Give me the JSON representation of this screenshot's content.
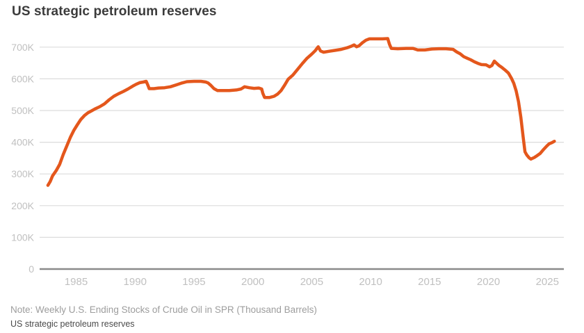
{
  "header": {
    "title": "US strategic petroleum reserves"
  },
  "footer": {
    "note": "Note: Weekly U.S. Ending Stocks of Crude Oil in SPR (Thousand Barrels)",
    "caption": "US strategic petroleum reserves"
  },
  "colors": {
    "line": "#e4571c",
    "grid": "#dcdcdc",
    "axis": "#8a8a8a",
    "tick_label": "#c0c0c0",
    "title_text": "#3b3b3b",
    "note_text": "#9d9d9d",
    "caption_text": "#4a4a4a",
    "background": "#ffffff"
  },
  "chart_data": {
    "type": "line",
    "title": "US strategic petroleum reserves",
    "xlabel": "",
    "ylabel": "Thousand Barrels",
    "grid": "horizontal",
    "legend_position": "none",
    "xlim": [
      1981.9,
      2026.4
    ],
    "ylim": [
      0,
      750000
    ],
    "x_ticks": [
      {
        "value": 1985,
        "label": "1985"
      },
      {
        "value": 1990,
        "label": "1990"
      },
      {
        "value": 1995,
        "label": "1995"
      },
      {
        "value": 2000,
        "label": "2000"
      },
      {
        "value": 2005,
        "label": "2005"
      },
      {
        "value": 2010,
        "label": "2010"
      },
      {
        "value": 2015,
        "label": "2015"
      },
      {
        "value": 2020,
        "label": "2020"
      },
      {
        "value": 2025,
        "label": "2025"
      }
    ],
    "y_ticks": [
      {
        "value": 0,
        "label": "0"
      },
      {
        "value": 100000,
        "label": "100K"
      },
      {
        "value": 200000,
        "label": "200K"
      },
      {
        "value": 300000,
        "label": "300K"
      },
      {
        "value": 400000,
        "label": "400K"
      },
      {
        "value": 500000,
        "label": "500K"
      },
      {
        "value": 600000,
        "label": "600K"
      },
      {
        "value": 700000,
        "label": "700K"
      }
    ],
    "series": [
      {
        "name": "Weekly U.S. Ending Stocks of Crude Oil in SPR",
        "color": "#e4571c",
        "points": [
          [
            1982.6,
            264000
          ],
          [
            1982.8,
            276000
          ],
          [
            1983.0,
            294000
          ],
          [
            1983.3,
            310000
          ],
          [
            1983.6,
            330000
          ],
          [
            1983.9,
            361000
          ],
          [
            1984.2,
            388000
          ],
          [
            1984.5,
            415000
          ],
          [
            1984.8,
            437000
          ],
          [
            1985.1,
            455000
          ],
          [
            1985.4,
            472000
          ],
          [
            1985.7,
            484000
          ],
          [
            1986.0,
            493000
          ],
          [
            1986.3,
            499000
          ],
          [
            1986.6,
            505000
          ],
          [
            1987.0,
            512000
          ],
          [
            1987.4,
            521000
          ],
          [
            1987.8,
            534000
          ],
          [
            1988.2,
            545000
          ],
          [
            1988.6,
            553000
          ],
          [
            1989.0,
            560000
          ],
          [
            1989.4,
            568000
          ],
          [
            1989.8,
            577000
          ],
          [
            1990.1,
            583000
          ],
          [
            1990.4,
            588000
          ],
          [
            1990.7,
            590000
          ],
          [
            1990.95,
            592000
          ],
          [
            1991.1,
            579000
          ],
          [
            1991.2,
            569000
          ],
          [
            1991.6,
            569000
          ],
          [
            1992.0,
            571000
          ],
          [
            1992.5,
            572000
          ],
          [
            1993.0,
            575000
          ],
          [
            1993.5,
            581000
          ],
          [
            1994.0,
            587000
          ],
          [
            1994.4,
            591000
          ],
          [
            1995.0,
            592000
          ],
          [
            1995.6,
            592000
          ],
          [
            1996.0,
            590000
          ],
          [
            1996.2,
            587000
          ],
          [
            1996.45,
            579000
          ],
          [
            1996.7,
            569000
          ],
          [
            1997.0,
            563000
          ],
          [
            1997.5,
            563000
          ],
          [
            1998.0,
            563000
          ],
          [
            1998.6,
            565000
          ],
          [
            1999.0,
            568000
          ],
          [
            1999.3,
            575000
          ],
          [
            1999.7,
            572000
          ],
          [
            2000.1,
            570000
          ],
          [
            2000.5,
            571000
          ],
          [
            2000.75,
            568000
          ],
          [
            2000.85,
            554000
          ],
          [
            2001.0,
            541000
          ],
          [
            2001.4,
            541000
          ],
          [
            2001.8,
            545000
          ],
          [
            2002.1,
            552000
          ],
          [
            2002.4,
            563000
          ],
          [
            2002.7,
            580000
          ],
          [
            2003.0,
            599000
          ],
          [
            2003.4,
            612000
          ],
          [
            2003.8,
            630000
          ],
          [
            2004.2,
            648000
          ],
          [
            2004.6,
            665000
          ],
          [
            2005.0,
            678000
          ],
          [
            2005.3,
            689000
          ],
          [
            2005.55,
            701000
          ],
          [
            2005.75,
            688000
          ],
          [
            2006.0,
            684000
          ],
          [
            2006.5,
            687000
          ],
          [
            2007.0,
            690000
          ],
          [
            2007.5,
            693000
          ],
          [
            2008.0,
            698000
          ],
          [
            2008.3,
            702000
          ],
          [
            2008.6,
            707000
          ],
          [
            2008.8,
            701000
          ],
          [
            2009.0,
            704000
          ],
          [
            2009.3,
            714000
          ],
          [
            2009.6,
            722000
          ],
          [
            2009.9,
            726000
          ],
          [
            2010.5,
            726000
          ],
          [
            2011.0,
            726000
          ],
          [
            2011.45,
            727000
          ],
          [
            2011.6,
            709000
          ],
          [
            2011.75,
            696000
          ],
          [
            2012.3,
            695000
          ],
          [
            2013.0,
            696000
          ],
          [
            2013.6,
            696000
          ],
          [
            2014.0,
            691000
          ],
          [
            2014.6,
            691000
          ],
          [
            2015.2,
            694000
          ],
          [
            2015.8,
            695000
          ],
          [
            2016.4,
            695000
          ],
          [
            2017.0,
            693000
          ],
          [
            2017.3,
            685000
          ],
          [
            2017.6,
            679000
          ],
          [
            2017.9,
            670000
          ],
          [
            2018.2,
            665000
          ],
          [
            2018.5,
            660000
          ],
          [
            2018.8,
            654000
          ],
          [
            2019.1,
            649000
          ],
          [
            2019.4,
            645000
          ],
          [
            2019.8,
            644000
          ],
          [
            2020.1,
            638000
          ],
          [
            2020.3,
            642000
          ],
          [
            2020.5,
            656000
          ],
          [
            2020.7,
            649000
          ],
          [
            2020.9,
            642000
          ],
          [
            2021.1,
            637000
          ],
          [
            2021.4,
            628000
          ],
          [
            2021.7,
            618000
          ],
          [
            2021.95,
            602000
          ],
          [
            2022.15,
            586000
          ],
          [
            2022.35,
            562000
          ],
          [
            2022.55,
            528000
          ],
          [
            2022.75,
            478000
          ],
          [
            2022.95,
            416000
          ],
          [
            2023.1,
            370000
          ],
          [
            2023.25,
            360000
          ],
          [
            2023.45,
            351000
          ],
          [
            2023.6,
            347000
          ],
          [
            2023.9,
            352000
          ],
          [
            2024.1,
            357000
          ],
          [
            2024.4,
            365000
          ],
          [
            2024.7,
            378000
          ],
          [
            2024.95,
            388000
          ],
          [
            2025.15,
            395000
          ],
          [
            2025.4,
            399000
          ],
          [
            2025.6,
            403000
          ]
        ]
      }
    ]
  }
}
